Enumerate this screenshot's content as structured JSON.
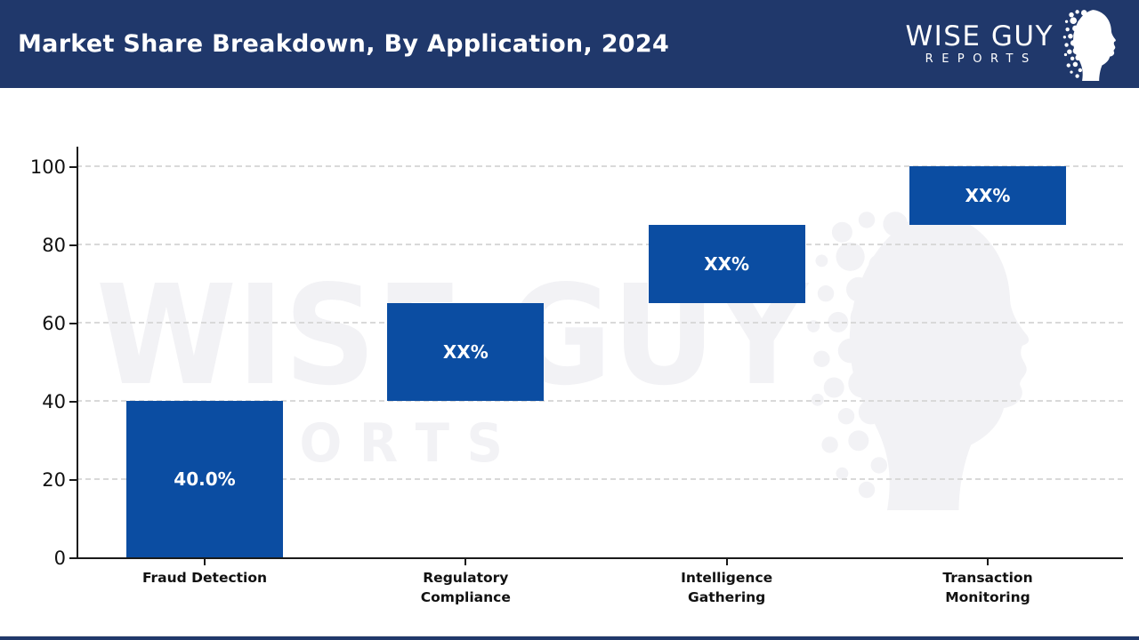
{
  "header": {
    "title": "Market Share Breakdown, By Application, 2024",
    "logo": {
      "line1": "WISE GUY",
      "line2": "REPORTS"
    },
    "bg_color": "#20386b"
  },
  "watermark": {
    "line1": "WISE GUY",
    "line2": "R E P O R T S"
  },
  "chart_data": {
    "type": "bar",
    "subtype": "waterfall",
    "title": "Market Share Breakdown, By Application, 2024",
    "categories": [
      "Fraud Detection",
      "Regulatory Compliance",
      "Intelligence Gathering",
      "Transaction Monitoring"
    ],
    "segments": [
      {
        "category": "Fraud Detection",
        "start": 0,
        "end": 40,
        "label": "40.0%"
      },
      {
        "category": "Regulatory Compliance",
        "start": 40,
        "end": 65,
        "label": "XX%"
      },
      {
        "category": "Intelligence Gathering",
        "start": 65,
        "end": 85,
        "label": "XX%"
      },
      {
        "category": "Transaction Monitoring",
        "start": 85,
        "end": 100,
        "label": "XX%"
      }
    ],
    "yticks": [
      0,
      20,
      40,
      60,
      80,
      100
    ],
    "ylim": [
      0,
      105
    ],
    "xlabel": "",
    "ylabel": "",
    "grid": "horizontal-dashed",
    "legend": "none",
    "bar_color": "#0b4da2",
    "bar_label_color": "#ffffff",
    "axis_color": "#1a1a1a",
    "gridline_color": "#d9d9d9",
    "watermark_color": "#f2f2f5"
  }
}
